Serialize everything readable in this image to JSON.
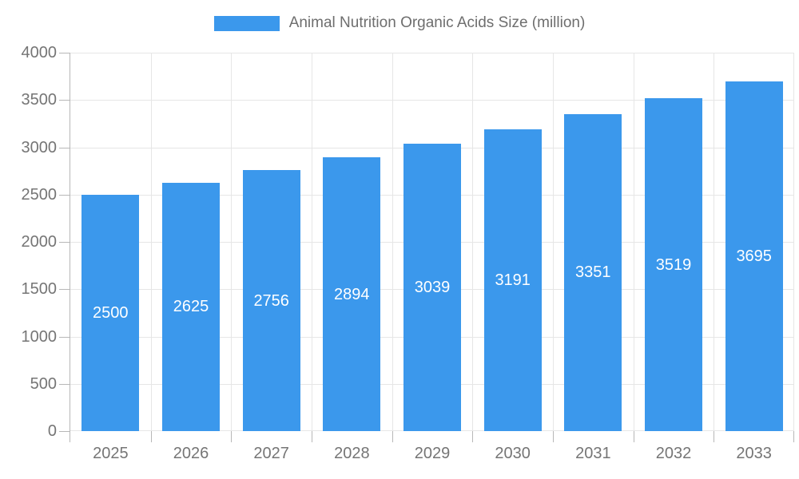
{
  "legend": {
    "label": "Animal Nutrition Organic Acids Size (million)",
    "swatch_color": "#3B98EC"
  },
  "chart_data": {
    "type": "bar",
    "title": "Animal Nutrition Organic Acids Size (million)",
    "categories": [
      "2025",
      "2026",
      "2027",
      "2028",
      "2029",
      "2030",
      "2031",
      "2032",
      "2033"
    ],
    "values": [
      2500,
      2625,
      2756,
      2894,
      3039,
      3191,
      3351,
      3519,
      3695
    ],
    "xlabel": "",
    "ylabel": "",
    "ylim": [
      0,
      4000
    ],
    "ytick_step": 500,
    "ytick_labels": [
      "0",
      "500",
      "1000",
      "1500",
      "2000",
      "2500",
      "3000",
      "3500",
      "4000"
    ],
    "grid": true,
    "legend_position": "top",
    "value_labels": "inside-center",
    "colors": {
      "bar": "#3B98EC",
      "value_label": "#FFFFFF",
      "axis_label": "#757575",
      "legend_text": "#6E6E6E",
      "grid_line": "#E6E6E6",
      "axis_line": "#B7B7B7",
      "background": "#FFFFFF"
    }
  }
}
